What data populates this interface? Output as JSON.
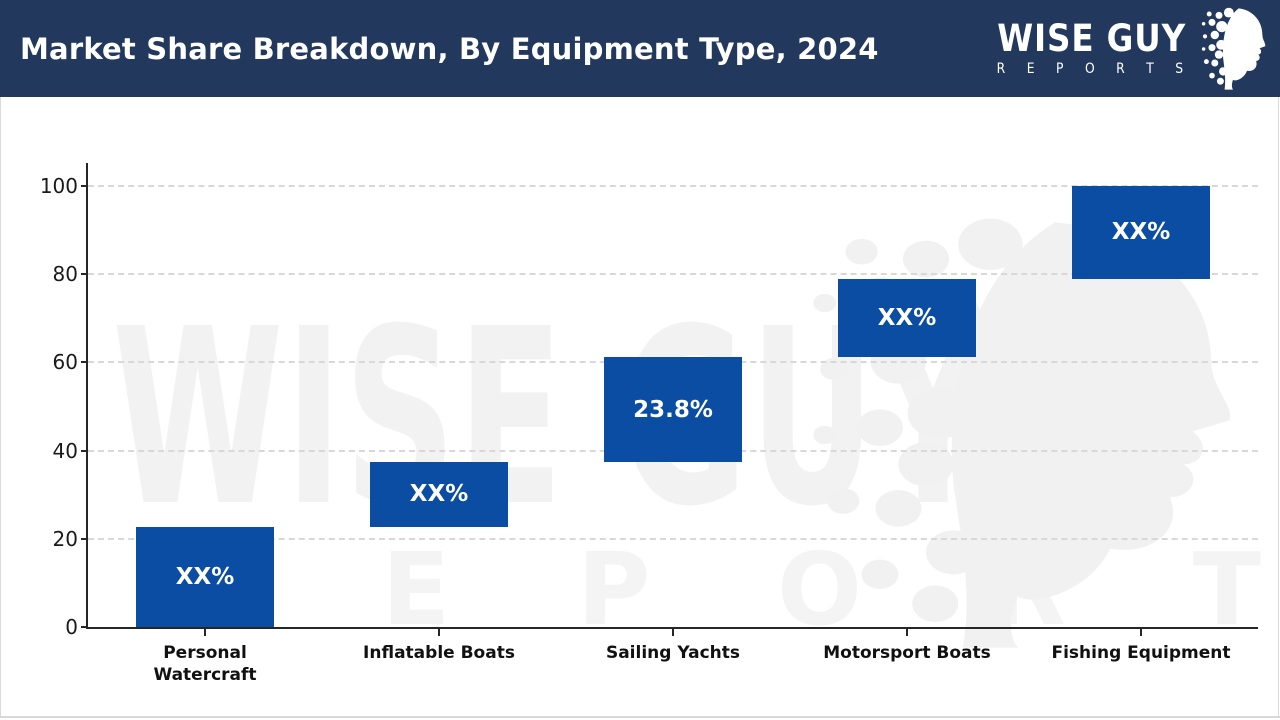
{
  "page": {
    "background": "#ffffff",
    "border_color": "#d9d9d9"
  },
  "header": {
    "background": "#22395d",
    "title": "Market Share Breakdown, By Equipment Type, 2024",
    "logo": {
      "line1": "WISE GUY",
      "line2": "R E P O R T S"
    }
  },
  "watermark": {
    "line1": "WISE GUY",
    "line2": "R E P O R T S"
  },
  "chart_data": {
    "type": "bar",
    "subtype": "waterfall-floating-bars",
    "title": "Market Share Breakdown, By Equipment Type, 2024",
    "categories": [
      "Personal Watercraft",
      "Inflatable Boats",
      "Sailing Yachts",
      "Motorsport Boats",
      "Fishing Equipment"
    ],
    "tick_label_lines": [
      [
        "Personal",
        "Watercraft"
      ],
      [
        "Inflatable Boats"
      ],
      [
        "Sailing Yachts"
      ],
      [
        "Motorsport Boats"
      ],
      [
        "Fishing Equipment"
      ]
    ],
    "segments": [
      {
        "category": "Personal Watercraft",
        "start": 0,
        "end": 22.7,
        "value": 22.7,
        "label": "XX%"
      },
      {
        "category": "Inflatable Boats",
        "start": 22.7,
        "end": 37.4,
        "value": 14.7,
        "label": "XX%"
      },
      {
        "category": "Sailing Yachts",
        "start": 37.4,
        "end": 61.2,
        "value": 23.8,
        "label": "23.8%"
      },
      {
        "category": "Motorsport Boats",
        "start": 61.2,
        "end": 79.0,
        "value": 17.8,
        "label": "XX%"
      },
      {
        "category": "Fishing Equipment",
        "start": 79.0,
        "end": 100.0,
        "value": 21.0,
        "label": "XX%"
      }
    ],
    "yticks": [
      0,
      20,
      40,
      60,
      80,
      100
    ],
    "ylim": [
      0,
      105.2
    ],
    "grid": {
      "axis": "y",
      "style": "dashed",
      "color": "#d8d8d8"
    },
    "bar_color": "#0b4da2",
    "bar_label_color": "#ffffff",
    "axis_color": "#262626",
    "legend": null
  }
}
